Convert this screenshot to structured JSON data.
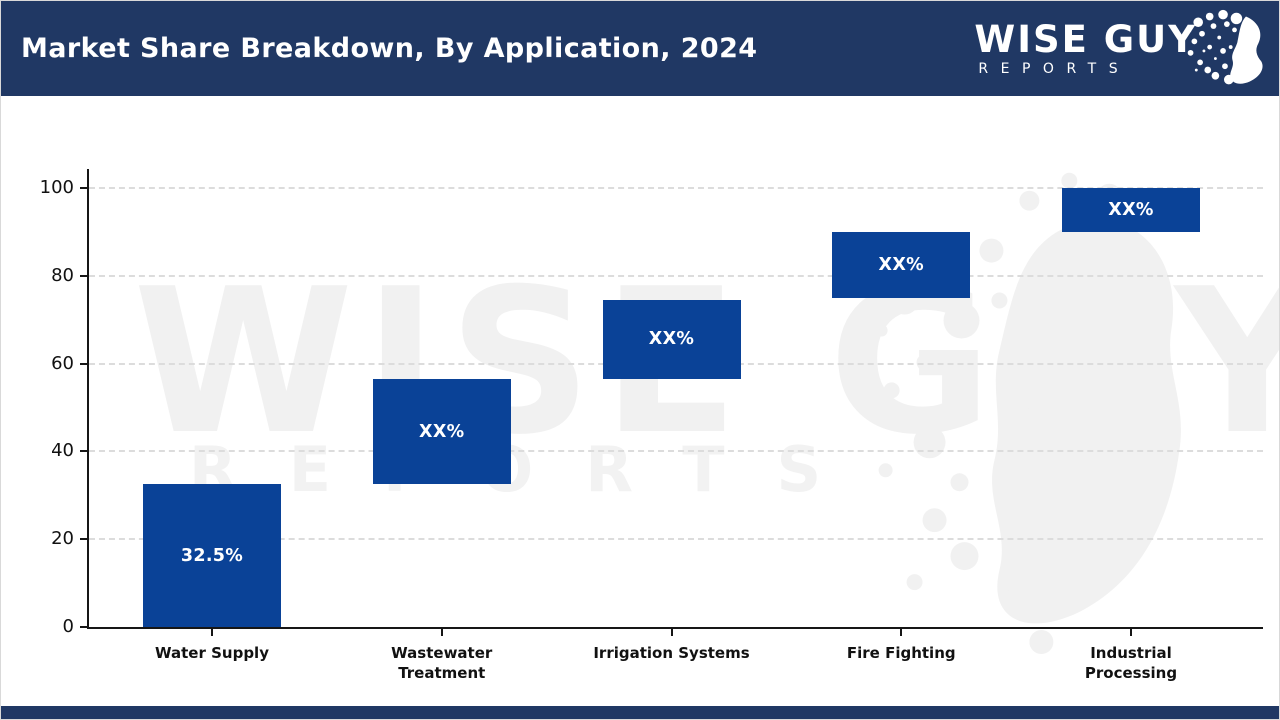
{
  "header": {
    "title": "Market Share Breakdown, By Application, 2024",
    "logo": {
      "line1": "WISE GUY",
      "line2": "REPORTS"
    }
  },
  "watermark": {
    "line1": "WISE GUY",
    "line2": "REPORTS"
  },
  "chart_data": {
    "type": "bar",
    "variant": "floating-waterfall",
    "title": "Market Share Breakdown, By Application, 2024",
    "categories": [
      "Water Supply",
      "Wastewater\nTreatment",
      "Irrigation Systems",
      "Fire Fighting",
      "Industrial\nProcessing"
    ],
    "segments": [
      {
        "category": "Water Supply",
        "start": 0,
        "end": 32.5,
        "label": "32.5%"
      },
      {
        "category": "Wastewater Treatment",
        "start": 32.5,
        "end": 56.5,
        "label": "XX%"
      },
      {
        "category": "Irrigation Systems",
        "start": 56.5,
        "end": 74.5,
        "label": "XX%"
      },
      {
        "category": "Fire Fighting",
        "start": 75,
        "end": 90,
        "label": "XX%"
      },
      {
        "category": "Industrial Processing",
        "start": 90,
        "end": 100,
        "label": "XX%"
      }
    ],
    "yticks": [
      0,
      20,
      40,
      60,
      80,
      100
    ],
    "ylim": [
      0,
      104
    ],
    "grid": "horizontal dashed",
    "legend": "none",
    "bar_color": "#0a4297"
  },
  "colors": {
    "header_navy": "#203864",
    "bar_blue": "#0a4297",
    "gridline": "#dcdcdc",
    "axis": "#161616",
    "watermark": "#f1f1f1",
    "bar_label_text": "#ffffff"
  }
}
